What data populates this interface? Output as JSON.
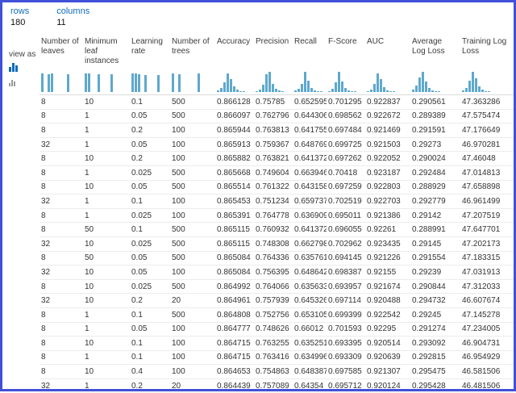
{
  "colors": {
    "accent_blue": "#0f6cbd",
    "histogram_bar": "#5fa8cd",
    "border_blue": "#4150d8",
    "row_line": "#ececec"
  },
  "header": {
    "rows_label": "rows",
    "rows_value": "180",
    "columns_label": "columns",
    "columns_value": "11"
  },
  "sidebar": {
    "view_as_label": "view as"
  },
  "table": {
    "columns": [
      {
        "label": "Number of leaves",
        "hist": [
          90,
          0,
          85,
          88,
          0,
          0,
          0,
          0,
          86
        ]
      },
      {
        "label": "Minimum leaf instances",
        "hist": [
          90,
          88,
          0,
          0,
          86,
          0,
          0,
          0,
          84
        ]
      },
      {
        "label": "Learning rate",
        "hist": [
          88,
          90,
          85,
          0,
          82,
          0,
          0,
          0,
          80
        ]
      },
      {
        "label": "Number of trees",
        "hist": [
          90,
          0,
          86,
          0,
          0,
          0,
          0,
          0,
          88
        ]
      },
      {
        "label": "Accuracy",
        "hist": [
          8,
          18,
          45,
          90,
          60,
          25,
          10,
          4,
          2
        ]
      },
      {
        "label": "Precision",
        "hist": [
          5,
          12,
          35,
          85,
          95,
          40,
          15,
          6,
          3
        ]
      },
      {
        "label": "Recall",
        "hist": [
          6,
          14,
          40,
          95,
          55,
          20,
          8,
          3,
          2
        ]
      },
      {
        "label": "F-Score",
        "hist": [
          5,
          15,
          45,
          95,
          50,
          18,
          7,
          3,
          2
        ]
      },
      {
        "label": "AUC",
        "hist": [
          4,
          12,
          38,
          90,
          60,
          22,
          9,
          4,
          2
        ]
      },
      {
        "label": "Average Log Loss",
        "hist": [
          10,
          30,
          70,
          95,
          50,
          20,
          8,
          4,
          2
        ]
      },
      {
        "label": "Training Log Loss",
        "hist": [
          6,
          20,
          55,
          95,
          65,
          25,
          10,
          4,
          2
        ]
      }
    ],
    "rows": [
      [
        "8",
        "10",
        "0.1",
        "500",
        "0.866128",
        "0.75785",
        "0.652595",
        "0.701295",
        "0.922837",
        "0.290561",
        "47.363286"
      ],
      [
        "8",
        "1",
        "0.05",
        "500",
        "0.866097",
        "0.762796",
        "0.644306",
        "0.698562",
        "0.922672",
        "0.289389",
        "47.575474"
      ],
      [
        "8",
        "1",
        "0.2",
        "100",
        "0.865944",
        "0.763813",
        "0.641755",
        "0.697484",
        "0.921469",
        "0.291591",
        "47.176649"
      ],
      [
        "32",
        "1",
        "0.05",
        "100",
        "0.865913",
        "0.759367",
        "0.648769",
        "0.699725",
        "0.921503",
        "0.29273",
        "46.970281"
      ],
      [
        "8",
        "10",
        "0.2",
        "100",
        "0.865882",
        "0.763821",
        "0.641372",
        "0.697262",
        "0.922052",
        "0.290024",
        "47.46048"
      ],
      [
        "8",
        "1",
        "0.025",
        "500",
        "0.865668",
        "0.749604",
        "0.663946",
        "0.70418",
        "0.923187",
        "0.292484",
        "47.014813"
      ],
      [
        "8",
        "10",
        "0.05",
        "500",
        "0.865514",
        "0.761322",
        "0.643158",
        "0.697259",
        "0.922803",
        "0.288929",
        "47.658898"
      ],
      [
        "32",
        "1",
        "0.1",
        "100",
        "0.865453",
        "0.751234",
        "0.659737",
        "0.702519",
        "0.922703",
        "0.292779",
        "46.961499"
      ],
      [
        "8",
        "1",
        "0.025",
        "100",
        "0.865391",
        "0.764778",
        "0.636909",
        "0.695011",
        "0.921386",
        "0.29142",
        "47.207519"
      ],
      [
        "8",
        "50",
        "0.1",
        "500",
        "0.865115",
        "0.760932",
        "0.641372",
        "0.696055",
        "0.92261",
        "0.288991",
        "47.647701"
      ],
      [
        "32",
        "10",
        "0.025",
        "500",
        "0.865115",
        "0.748308",
        "0.662798",
        "0.702962",
        "0.923435",
        "0.29145",
        "47.202173"
      ],
      [
        "8",
        "50",
        "0.05",
        "500",
        "0.865084",
        "0.764336",
        "0.635761",
        "0.694145",
        "0.921226",
        "0.291554",
        "47.183315"
      ],
      [
        "32",
        "10",
        "0.05",
        "100",
        "0.865084",
        "0.756395",
        "0.648642",
        "0.698387",
        "0.92155",
        "0.29239",
        "47.031913"
      ],
      [
        "8",
        "10",
        "0.025",
        "500",
        "0.864992",
        "0.764066",
        "0.635633",
        "0.693957",
        "0.921674",
        "0.290844",
        "47.312033"
      ],
      [
        "32",
        "10",
        "0.2",
        "20",
        "0.864961",
        "0.757939",
        "0.645326",
        "0.697114",
        "0.920488",
        "0.294732",
        "46.607674"
      ],
      [
        "8",
        "1",
        "0.1",
        "500",
        "0.864808",
        "0.752756",
        "0.653105",
        "0.699399",
        "0.922542",
        "0.29245",
        "47.145278"
      ],
      [
        "8",
        "1",
        "0.05",
        "100",
        "0.864777",
        "0.748626",
        "0.66012",
        "0.701593",
        "0.92295",
        "0.291274",
        "47.234005"
      ],
      [
        "8",
        "10",
        "0.1",
        "100",
        "0.864715",
        "0.763255",
        "0.635251",
        "0.693395",
        "0.920514",
        "0.293092",
        "46.904731"
      ],
      [
        "8",
        "1",
        "0.1",
        "100",
        "0.864715",
        "0.763416",
        "0.634996",
        "0.693309",
        "0.920639",
        "0.292815",
        "46.954929"
      ],
      [
        "8",
        "10",
        "0.4",
        "100",
        "0.864653",
        "0.754863",
        "0.648387",
        "0.697585",
        "0.921307",
        "0.295475",
        "46.581506"
      ],
      [
        "32",
        "1",
        "0.2",
        "20",
        "0.864439",
        "0.757089",
        "0.64354",
        "0.695712",
        "0.920124",
        "0.295428",
        "46.481506"
      ]
    ]
  }
}
